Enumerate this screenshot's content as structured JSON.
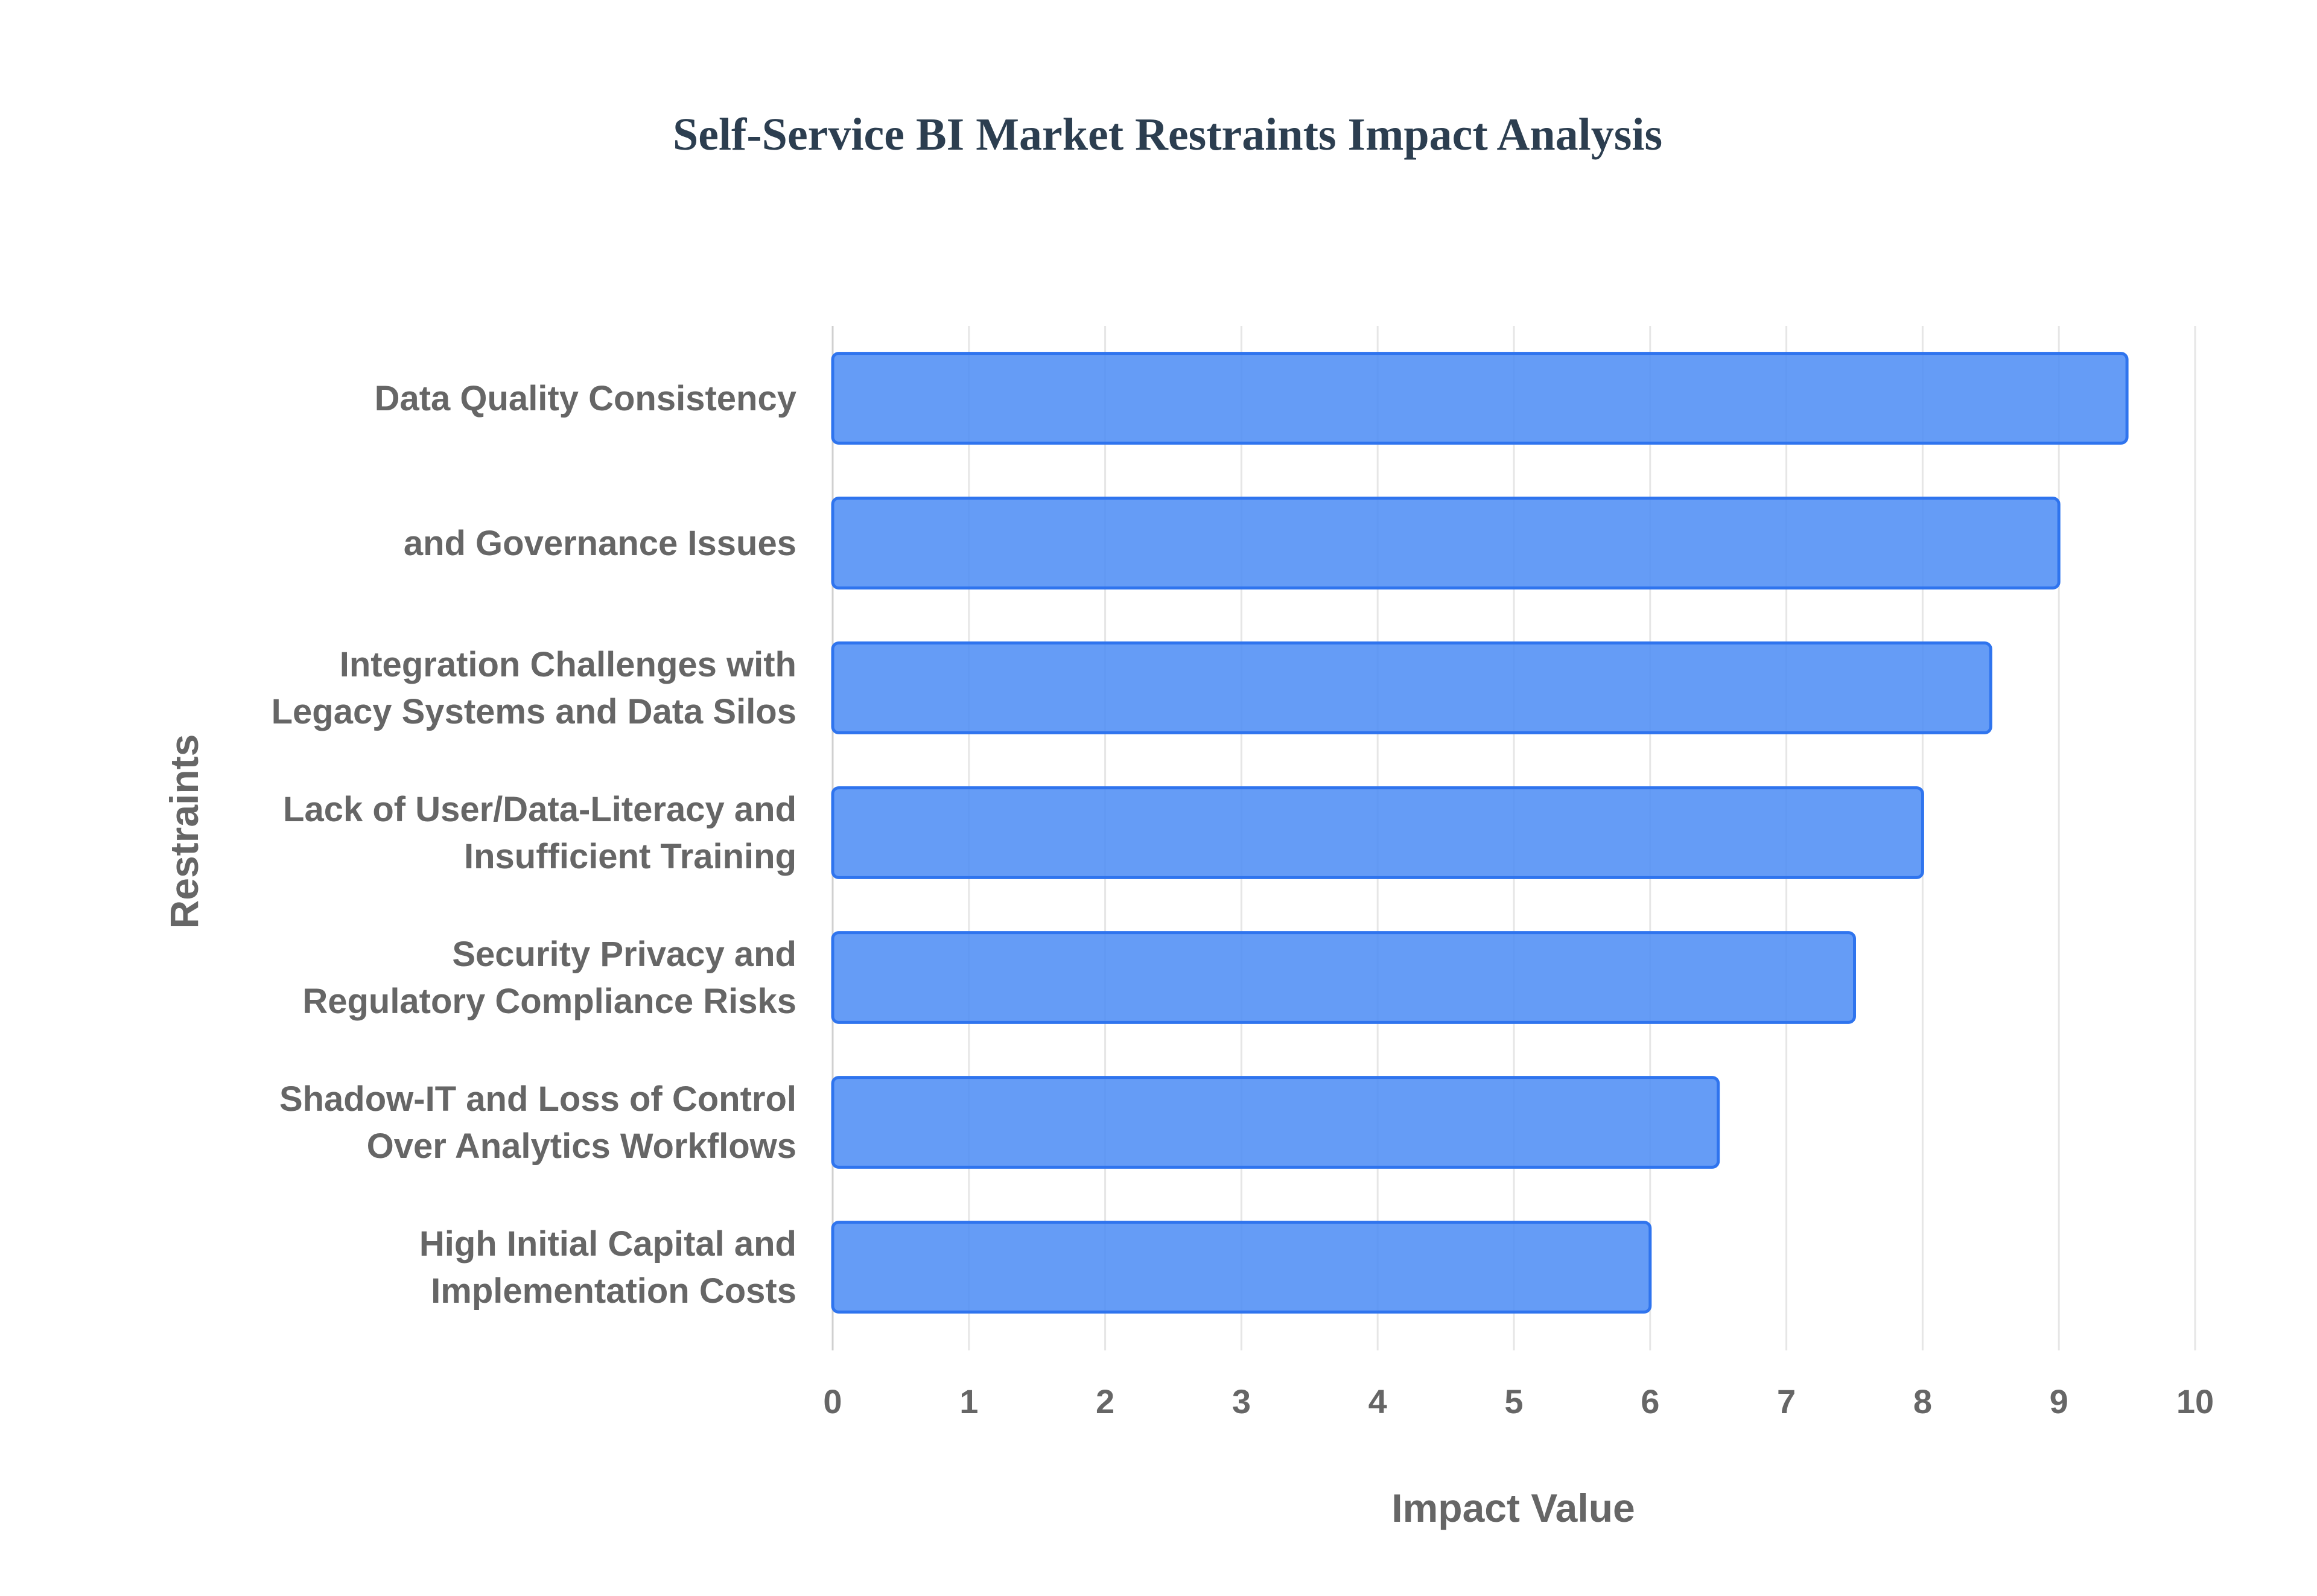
{
  "chart_data": {
    "type": "bar",
    "orientation": "horizontal",
    "title": "Self-Service BI Market Restraints Impact Analysis",
    "xlabel": "Impact Value",
    "ylabel": "Restraints",
    "categories": [
      [
        "Data Quality Consistency"
      ],
      [
        "and Governance Issues"
      ],
      [
        "Integration Challenges with",
        "Legacy Systems and Data Silos"
      ],
      [
        "Lack of User/Data-Literacy and",
        "Insufficient Training"
      ],
      [
        "Security Privacy and",
        "Regulatory Compliance Risks"
      ],
      [
        "Shadow-IT and Loss of Control",
        "Over Analytics Workflows"
      ],
      [
        "High Initial Capital and",
        "Implementation Costs"
      ]
    ],
    "values": [
      9.5,
      9.0,
      8.5,
      8.0,
      7.5,
      6.5,
      6.0
    ],
    "xlim": [
      0,
      10
    ],
    "xticks": [
      0,
      1,
      2,
      3,
      4,
      5,
      6,
      7,
      8,
      9,
      10
    ],
    "grid": true,
    "legend": "none",
    "colors": {
      "bar_fill": "#4a8bf5",
      "bar_stroke": "#2f74ee",
      "title": "#2c3e50",
      "label": "#666666",
      "grid": "#e6e6e6",
      "axis": "#d0d0d0"
    }
  }
}
